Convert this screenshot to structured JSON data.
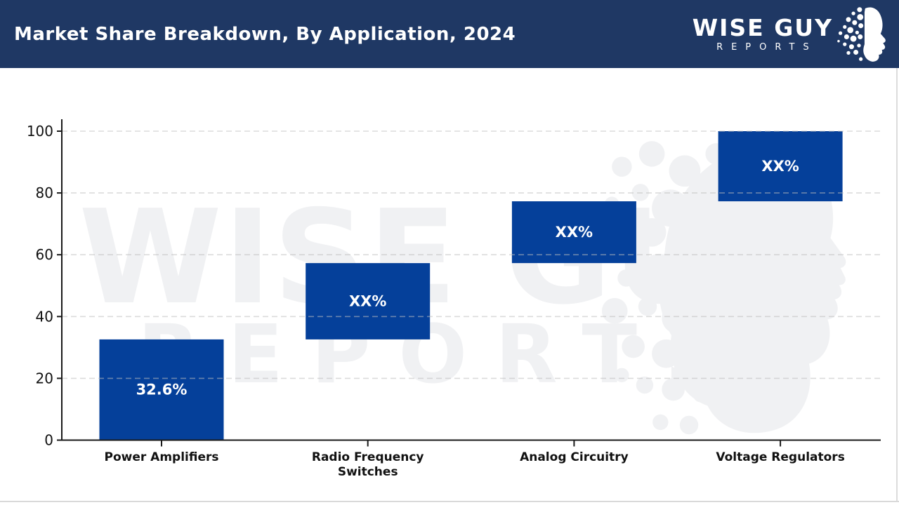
{
  "header": {
    "title": "Market Share Breakdown, By Application, 2024",
    "logo": {
      "line1": "WISE GUY",
      "line2": "REPORTS",
      "icon": "dotted-head-profile"
    }
  },
  "watermark": {
    "line1": "WISE GUY",
    "line2": "REPORTS",
    "icon": "dotted-head-profile"
  },
  "colors": {
    "header_bg": "#1f3864",
    "bar": "#05409a",
    "bar_label": "#ffffff",
    "grid": "#bebebe",
    "axis": "#1a1a1a",
    "tick_text": "#111111",
    "watermark": "#f0f1f3"
  },
  "chart_data": {
    "type": "bar",
    "subtype": "waterfall",
    "title": "Market Share Breakdown, By Application, 2024",
    "categories": [
      "Power Amplifiers",
      "Radio Frequency Switches",
      "Analog Circuitry",
      "Voltage Regulators"
    ],
    "category_lines": [
      [
        "Power Amplifiers"
      ],
      [
        "Radio Frequency",
        "Switches"
      ],
      [
        "Analog Circuitry"
      ],
      [
        "Voltage Regulators"
      ]
    ],
    "bars": [
      {
        "category": "Power Amplifiers",
        "start": 0,
        "end": 32.6,
        "value": 32.6,
        "label": "32.6%"
      },
      {
        "category": "Radio Frequency Switches",
        "start": 32.6,
        "end": 57.3,
        "value": 24.7,
        "label": "XX%"
      },
      {
        "category": "Analog Circuitry",
        "start": 57.3,
        "end": 77.3,
        "value": 20.0,
        "label": "XX%"
      },
      {
        "category": "Voltage Regulators",
        "start": 77.3,
        "end": 100,
        "value": 22.7,
        "label": "XX%"
      }
    ],
    "y_ticks": [
      0,
      20,
      40,
      60,
      80,
      100
    ],
    "ylim": [
      0,
      104
    ],
    "xlabel": "",
    "ylabel": "",
    "grid": "horizontal-dashed",
    "legend": "none"
  }
}
